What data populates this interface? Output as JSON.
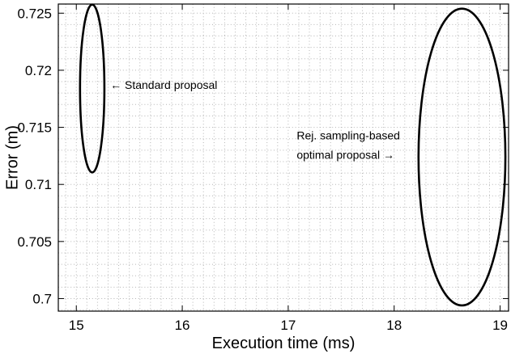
{
  "chart_data": {
    "type": "scatter",
    "title": "",
    "xlabel": "Execution time (ms)",
    "ylabel": "Error (m)",
    "xlim": [
      14.83,
      19.08
    ],
    "ylim": [
      0.6989,
      0.7258
    ],
    "xticks": [
      {
        "value": 15,
        "label": "15"
      },
      {
        "value": 16,
        "label": "16"
      },
      {
        "value": 17,
        "label": "17"
      },
      {
        "value": 18,
        "label": "18"
      },
      {
        "value": 19,
        "label": "19"
      }
    ],
    "yticks": [
      {
        "value": 0.7,
        "label": "0.7"
      },
      {
        "value": 0.705,
        "label": "0.705"
      },
      {
        "value": 0.71,
        "label": "0.71"
      },
      {
        "value": 0.715,
        "label": "0.715"
      },
      {
        "value": 0.72,
        "label": "0.72"
      },
      {
        "value": 0.725,
        "label": "0.725"
      }
    ],
    "grid": {
      "show": true,
      "style": "dotted",
      "x_step": 0.1,
      "y_step": 0.001,
      "color": "#b5b5b5"
    },
    "axis_color": "#000000",
    "background": "#ffffff",
    "ellipses": [
      {
        "name": "standard-proposal-ellipse",
        "cx": 15.15,
        "cy": 0.7184,
        "rx": 0.115,
        "ry": 0.00735,
        "stroke": "#000000",
        "stroke_width": 2.6,
        "label": "Standard proposal"
      },
      {
        "name": "optimal-proposal-ellipse",
        "cx": 18.64,
        "cy": 0.7124,
        "rx": 0.41,
        "ry": 0.013,
        "stroke": "#000000",
        "stroke_width": 2.6,
        "label": "Rej. sampling-based optimal proposal"
      }
    ],
    "annotations": [
      {
        "name": "standard-proposal-label",
        "text": "← Standard proposal",
        "x": 15.32,
        "y": 0.7187,
        "align": "left",
        "font_size": 14
      },
      {
        "name": "optimal-proposal-label-line1",
        "text": "Rej. sampling-based",
        "x": 17.08,
        "y": 0.7143,
        "align": "left",
        "font_size": 14
      },
      {
        "name": "optimal-proposal-label-line2",
        "text": "optimal proposal →",
        "x": 17.08,
        "y": 0.7126,
        "align": "left",
        "font_size": 14
      }
    ]
  }
}
